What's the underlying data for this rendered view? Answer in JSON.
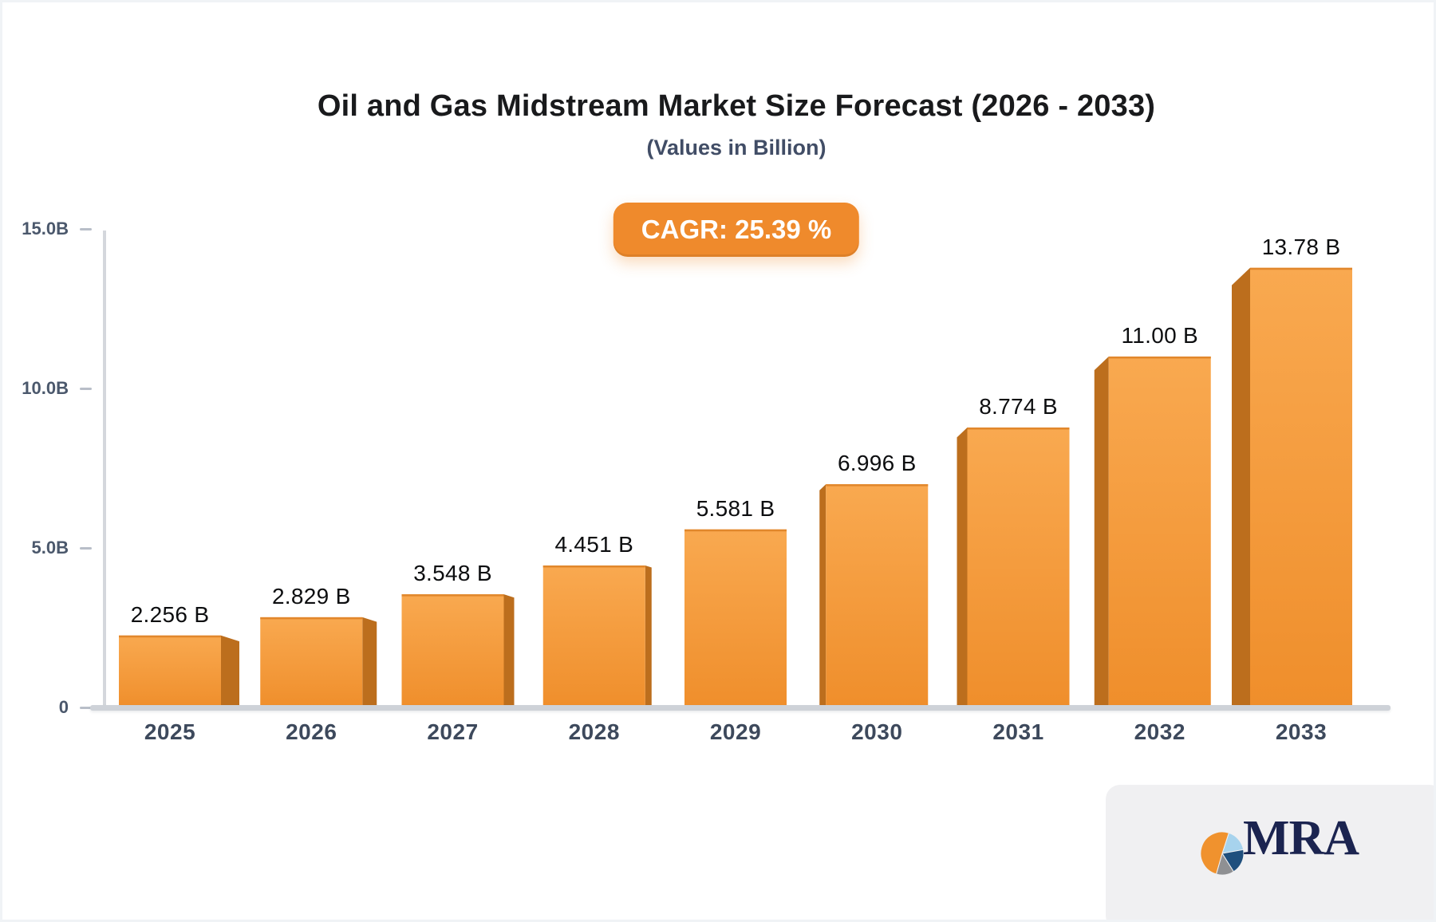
{
  "header": {
    "title": "Oil and Gas Midstream Market Size Forecast (2026 - 2033)",
    "subtitle": "(Values in Billion)",
    "cagr_badge": "CAGR: 25.39 %"
  },
  "chart_data": {
    "type": "bar",
    "title": "Oil and Gas Midstream Market Size Forecast (2026 - 2033)",
    "subtitle": "(Values in Billion)",
    "annotation": "CAGR: 25.39 %",
    "unit": "Billion",
    "categories": [
      "2025",
      "2026",
      "2027",
      "2028",
      "2029",
      "2030",
      "2031",
      "2032",
      "2033"
    ],
    "values": [
      2.256,
      2.829,
      3.548,
      4.451,
      5.581,
      6.996,
      8.774,
      11.0,
      13.78
    ],
    "value_labels": [
      "2.256 B",
      "2.829 B",
      "3.548 B",
      "4.451 B",
      "5.581 B",
      "6.996 B",
      "8.774 B",
      "11.00 B",
      "13.78 B"
    ],
    "y_ticks": [
      {
        "value": 0,
        "label": "0"
      },
      {
        "value": 5,
        "label": "5.0B"
      },
      {
        "value": 10,
        "label": "10.0B"
      },
      {
        "value": 15,
        "label": "15.0B"
      }
    ],
    "ylim": [
      0,
      15
    ],
    "grid": false,
    "legend": false,
    "colors": {
      "bar_gradient_top": "#f9a950",
      "bar_gradient_bottom": "#ef8e2b",
      "bar_top_edge": "#e1872c",
      "bar_side": "#bc6e1d",
      "axis_line": "#d4d7dc",
      "baseline": "#ced2d8",
      "tick": "#b8bec8",
      "tick_label": "#4b586c",
      "year_label": "#3d495c",
      "value_label": "#0d0e10",
      "badge_bg": "#ef8a2c",
      "badge_text": "#ffffff"
    }
  },
  "logo": {
    "text": "MRA",
    "text_color": "#1b2450",
    "panel_color": "#f0f0f2",
    "pie_slices": [
      {
        "name": "light-blue",
        "color": "#a7d3ed",
        "from": 18,
        "to": 80
      },
      {
        "name": "navy",
        "color": "#1f4f7d",
        "from": 80,
        "to": 148
      },
      {
        "name": "gray",
        "color": "#8f9093",
        "from": 148,
        "to": 196
      },
      {
        "name": "orange",
        "color": "#f0922e",
        "from": 196,
        "to": 378
      }
    ]
  }
}
